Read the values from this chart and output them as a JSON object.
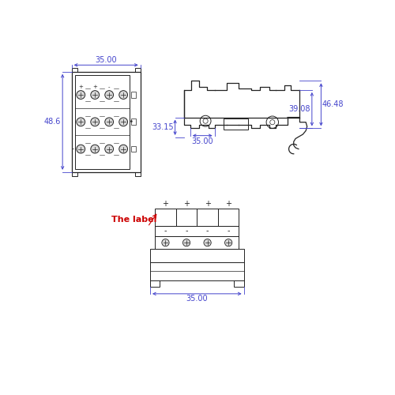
{
  "bg_color": "#ffffff",
  "dim_color": "#4444cc",
  "draw_color": "#222222",
  "label_color": "#cc0000",
  "dim_fontsize": 7,
  "label_fontsize": 8,
  "annotations": {
    "top_width": "35.00",
    "left_height": "48.6",
    "side_height": "33.15",
    "right_height1": "39.08",
    "right_height2": "46.48",
    "bottom_width": "35.00",
    "label_text": "The label"
  }
}
